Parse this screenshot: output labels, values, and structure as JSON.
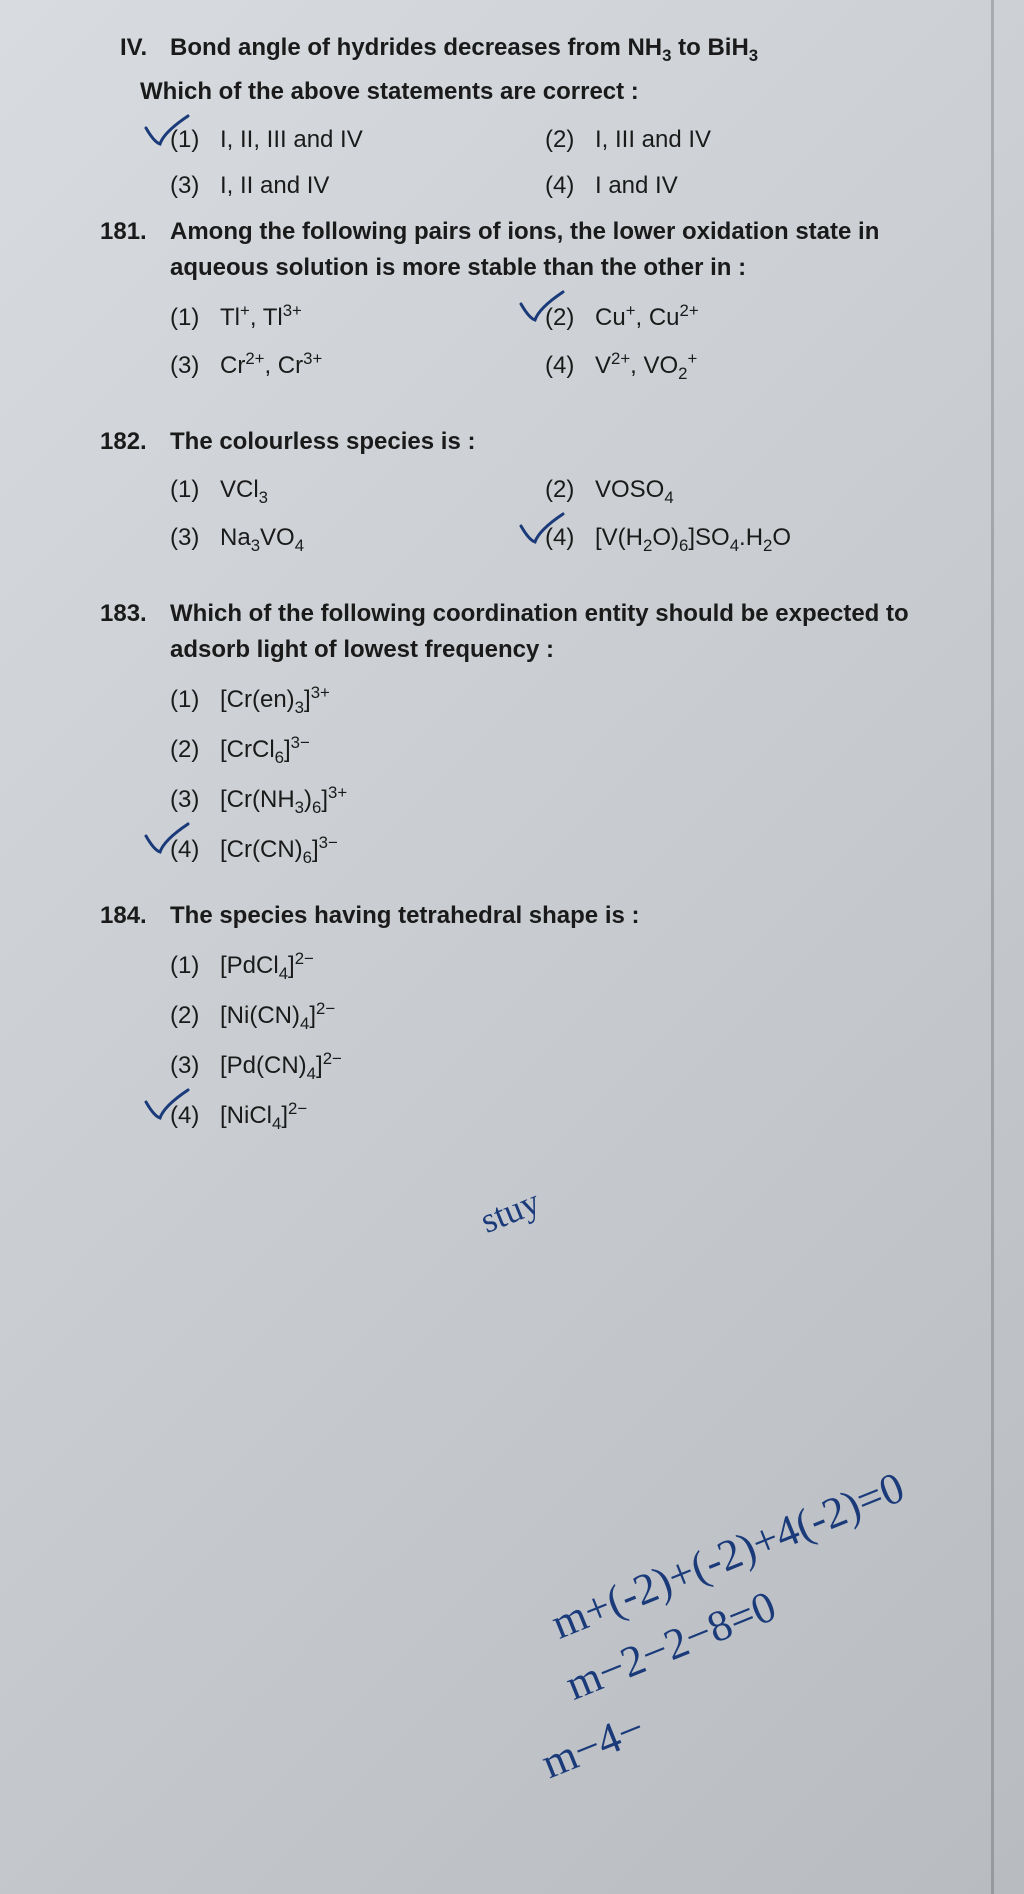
{
  "statement": {
    "num": "IV.",
    "text_line1": "Bond angle of hydrides decreases from NH",
    "text_sub1": "3",
    "text_line2": "to BiH",
    "text_sub2": "3"
  },
  "prompt": "Which of the above statements are correct :",
  "q_top_options": [
    {
      "n": "(1)",
      "t": "I, II, III and IV",
      "ticked": true
    },
    {
      "n": "(2)",
      "t": "I, III and IV",
      "ticked": false
    },
    {
      "n": "(3)",
      "t": "I, II and IV",
      "ticked": false
    },
    {
      "n": "(4)",
      "t": "I and IV",
      "ticked": false
    }
  ],
  "q181": {
    "num": "181.",
    "stem": "Among the following pairs of ions, the lower oxidation state in aqueous solution is more stable than the other in :",
    "options": [
      {
        "n": "(1)",
        "html": "Tl<sup>+</sup>, Tl<sup>3+</sup>",
        "ticked": false
      },
      {
        "n": "(2)",
        "html": "Cu<sup>+</sup>, Cu<sup>2+</sup>",
        "ticked": true
      },
      {
        "n": "(3)",
        "html": "Cr<sup>2+</sup>, Cr<sup>3+</sup>",
        "ticked": false
      },
      {
        "n": "(4)",
        "html": "V<sup>2+</sup>, VO<sub>2</sub><sup>+</sup>",
        "ticked": false
      }
    ]
  },
  "q182": {
    "num": "182.",
    "stem": "The colourless species is :",
    "options": [
      {
        "n": "(1)",
        "html": "VCl<sub>3</sub>",
        "ticked": false
      },
      {
        "n": "(2)",
        "html": "VOSO<sub>4</sub>",
        "ticked": false
      },
      {
        "n": "(3)",
        "html": "Na<sub>3</sub>VO<sub>4</sub>",
        "ticked": false
      },
      {
        "n": "(4)",
        "html": "[V(H<sub>2</sub>O)<sub>6</sub>]SO<sub>4</sub>.H<sub>2</sub>O",
        "ticked": true
      }
    ]
  },
  "q183": {
    "num": "183.",
    "stem": "Which of the following coordination entity should be expected to adsorb light of lowest frequency :",
    "options": [
      {
        "n": "(1)",
        "html": "[Cr(en)<sub>3</sub>]<sup>3+</sup>",
        "ticked": false
      },
      {
        "n": "(2)",
        "html": "[CrCl<sub>6</sub>]<sup>3−</sup>",
        "ticked": false
      },
      {
        "n": "(3)",
        "html": "[Cr(NH<sub>3</sub>)<sub>6</sub>]<sup>3+</sup>",
        "ticked": false
      },
      {
        "n": "(4)",
        "html": "[Cr(CN)<sub>6</sub>]<sup>3−</sup>",
        "ticked": true
      }
    ]
  },
  "q184": {
    "num": "184.",
    "stem": "The species having tetrahedral shape is :",
    "options": [
      {
        "n": "(1)",
        "html": "[PdCl<sub>4</sub>]<sup>2−</sup>",
        "ticked": false
      },
      {
        "n": "(2)",
        "html": "[Ni(CN)<sub>4</sub>]<sup>2−</sup>",
        "ticked": false
      },
      {
        "n": "(3)",
        "html": "[Pd(CN)<sub>4</sub>]<sup>2−</sup>",
        "ticked": false
      },
      {
        "n": "(4)",
        "html": "[NiCl<sub>4</sub>]<sup>2−</sup>",
        "ticked": true
      }
    ]
  },
  "handwriting": {
    "note1": "stuy",
    "eq1": "m+(-2)+(-2)+4(-2)=0",
    "eq2": "m−2−2−8=0",
    "eq3": "m−4−"
  },
  "colors": {
    "ink": "#1a3a7a",
    "text": "#1a1a1a"
  }
}
